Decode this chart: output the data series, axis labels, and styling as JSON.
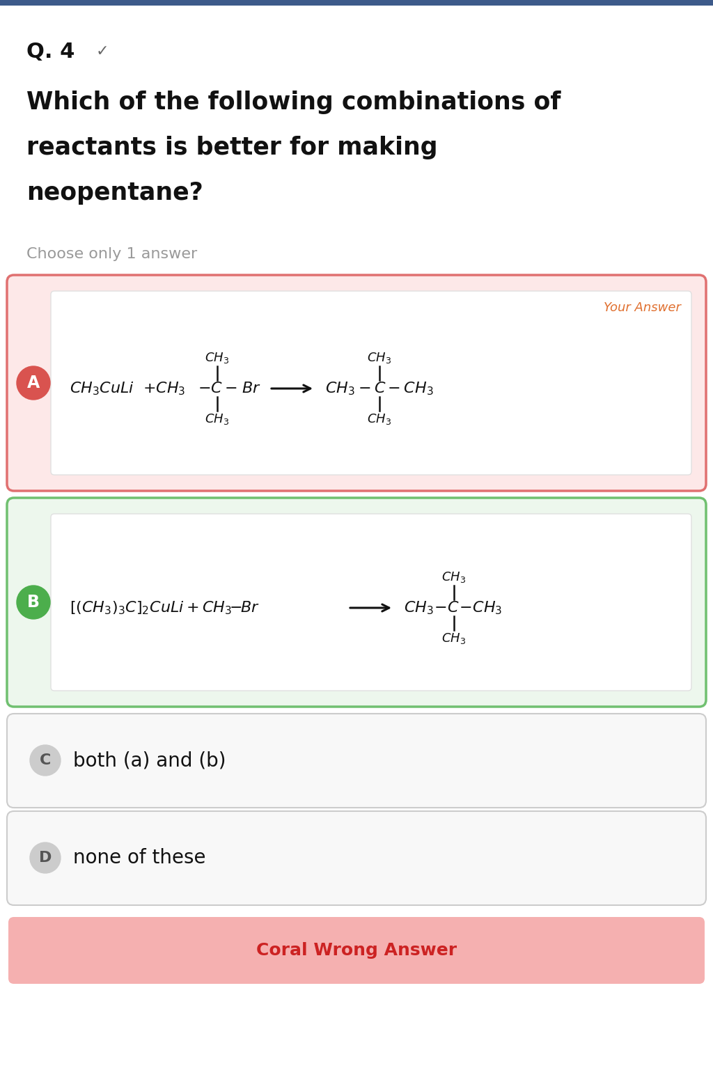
{
  "bg_color": "#ffffff",
  "top_bar_color": "#3d5a8a",
  "q_label": "Q. 4",
  "question_line1": "Which of the following combinations of",
  "question_line2": "reactants is better for making",
  "question_line3": "neopentane?",
  "choose_text": "Choose only 1 answer",
  "option_A_bg": "#fde8e8",
  "option_A_border": "#e07070",
  "option_A_circle_bg": "#d9534f",
  "option_A_label": "A",
  "your_answer_text": "Your Answer",
  "your_answer_color": "#e07030",
  "option_B_bg": "#edf7ed",
  "option_B_border": "#70c070",
  "option_B_circle_bg": "#4cae4c",
  "option_B_label": "B",
  "option_C_bg": "#f8f8f8",
  "option_C_border": "#cccccc",
  "option_C_label": "C",
  "option_C_text": "both (a) and (b)",
  "option_D_bg": "#f8f8f8",
  "option_D_border": "#cccccc",
  "option_D_label": "D",
  "option_D_text": "none of these",
  "bottom_bar_color": "#f5b0b0",
  "bottom_text": "Coral Wrong Answer",
  "bottom_text_color": "#cc2222"
}
